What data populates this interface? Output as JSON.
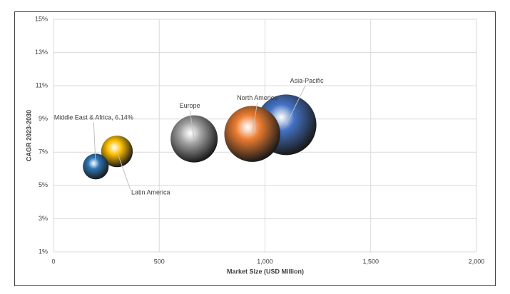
{
  "chart_data": {
    "type": "bubble",
    "labels": [
      "Middle East & Africa, 6.14%",
      "Latin America",
      "Europe",
      "North America",
      "Asia-Pacific"
    ],
    "x": [
      200,
      300,
      665,
      940,
      1100
    ],
    "values": [
      6.14,
      7.05,
      7.8,
      8.1,
      8.65
    ],
    "colors": [
      "#2e75b6",
      "#ffc000",
      "#a5a5a5",
      "#ed7d31",
      "#4472c4"
    ],
    "x_label": "Market Size (USD Million)",
    "y_label": "CAGR 2023-2030",
    "xlim": [
      0,
      2000
    ],
    "xticks": [
      0,
      500,
      {
        "value": 1000,
        "label": "1,000"
      },
      {
        "value": 1500,
        "label": "1,500"
      },
      {
        "value": 2000,
        "label": "2,000"
      }
    ],
    "ylim": [
      1,
      15
    ],
    "yticks": [
      {
        "value": 1,
        "label": "1%"
      },
      {
        "value": 3,
        "label": "3%"
      },
      {
        "value": 5,
        "label": "5%"
      },
      {
        "value": 7,
        "label": "7%"
      },
      {
        "value": 9,
        "label": "9%"
      },
      {
        "value": 11,
        "label": "11%"
      },
      {
        "value": 13,
        "label": "13%"
      },
      {
        "value": 15,
        "label": "15%"
      }
    ],
    "grid": true
  }
}
